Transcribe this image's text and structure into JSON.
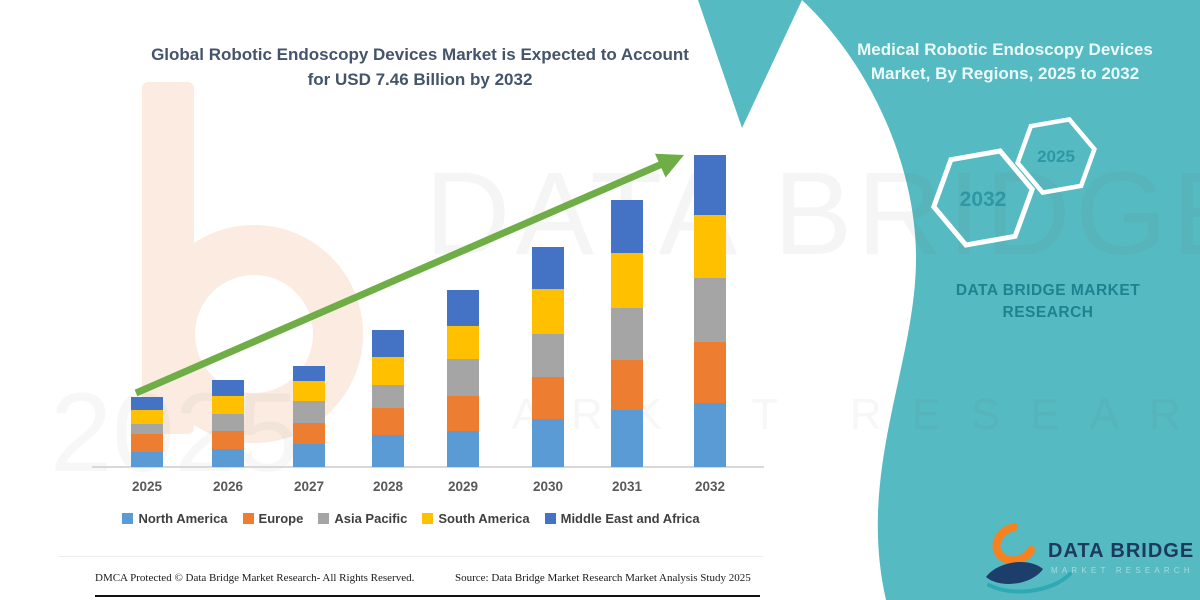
{
  "header": {
    "title_line1": "Global Robotic Endoscopy Devices Market is Expected to Account",
    "title_line2": "for USD 7.46 Billion by 2032"
  },
  "panel": {
    "title_line1": "Medical Robotic Endoscopy Devices",
    "title_line2": "Market, By Regions, 2025 to 2032",
    "hexagon_left_year": "2032",
    "hexagon_right_year": "2025",
    "brand_line1": "DATA BRIDGE MARKET",
    "brand_line2": "RESEARCH",
    "background_color": "#55BAC1",
    "brand_text_color": "#1E838F",
    "hexagon_text_color": "#2D98A4"
  },
  "logo": {
    "name_text": "DATA BRIDGE",
    "subtext": "MARKET RESEARCH"
  },
  "watermark": {
    "text_main": "DATA BRIDGE",
    "text_sub": "MARKET RESEARCH",
    "text_year": "2025"
  },
  "footer": {
    "left_text": "DMCA Protected © Data Bridge Market Research-  All Rights Reserved.",
    "right_text": "Source: Data Bridge Market Research  Market Analysis Study 2025"
  },
  "chart_data": {
    "type": "bar",
    "subtype": "stacked-vertical",
    "title": "Global Robotic Endoscopy Devices Market is Expected to Account for USD 7.46 Billion by 2032",
    "unit": "USD Billion",
    "value_axis_visible": false,
    "grid": false,
    "legend_position": "bottom",
    "trendline": true,
    "trend_arrow_color": "#6FAE46",
    "categories": [
      "2025",
      "2026",
      "2027",
      "2028",
      "2029",
      "2030",
      "2031",
      "2032"
    ],
    "series": [
      {
        "name": "North America",
        "color": "#5B9BD5",
        "values": [
          0.36,
          0.43,
          0.55,
          0.77,
          0.86,
          1.15,
          1.36,
          1.53
        ]
      },
      {
        "name": "Europe",
        "color": "#ED7D31",
        "values": [
          0.43,
          0.43,
          0.5,
          0.65,
          0.84,
          1.0,
          1.2,
          1.46
        ]
      },
      {
        "name": "Asia Pacific",
        "color": "#A5A5A5",
        "values": [
          0.24,
          0.41,
          0.53,
          0.55,
          0.88,
          1.03,
          1.24,
          1.53
        ]
      },
      {
        "name": "South America",
        "color": "#FFC000",
        "values": [
          0.33,
          0.43,
          0.48,
          0.65,
          0.79,
          1.08,
          1.32,
          1.51
        ]
      },
      {
        "name": "Middle East and Africa",
        "color": "#4472C4",
        "values": [
          0.31,
          0.38,
          0.36,
          0.65,
          0.86,
          1.0,
          1.27,
          1.43
        ]
      }
    ],
    "totals": [
      1.67,
      2.08,
      2.42,
      3.27,
      4.23,
      5.26,
      6.39,
      7.46
    ],
    "ylim": [
      0,
      7.46
    ]
  }
}
